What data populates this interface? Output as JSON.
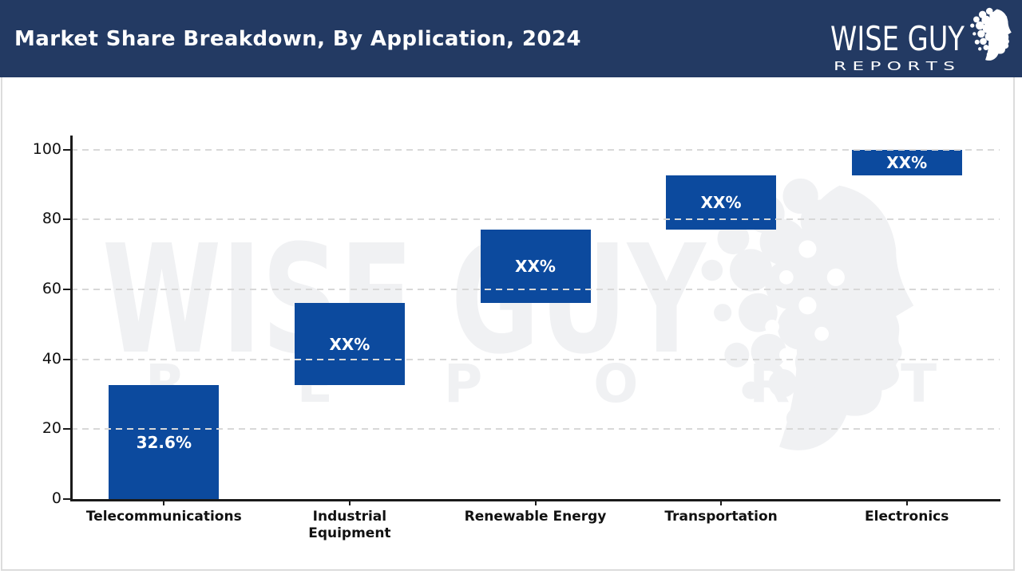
{
  "header": {
    "title": "Market Share Breakdown, By Application, 2024",
    "bg_color": "#233a63",
    "logo": {
      "line1": "WISE GUY",
      "line2": "R E P O R T S"
    }
  },
  "watermark": {
    "line1": "WISE GUY",
    "line2": "R E P O R T S"
  },
  "chart_data": {
    "type": "bar",
    "subtype": "waterfall",
    "title": "Market Share Breakdown, By Application, 2024",
    "categories": [
      "Telecommunications",
      "Industrial Equipment",
      "Renewable Energy",
      "Transportation",
      "Electronics"
    ],
    "category_label_lines": [
      [
        "Telecommunications"
      ],
      [
        "Industrial",
        "Equipment"
      ],
      [
        "Renewable Energy"
      ],
      [
        "Transportation"
      ],
      [
        "Electronics"
      ]
    ],
    "segments": [
      {
        "category": "Telecommunications",
        "start": 0,
        "end": 32.6,
        "label": "32.6%"
      },
      {
        "category": "Industrial Equipment",
        "start": 32.6,
        "end": 56,
        "label": "XX%"
      },
      {
        "category": "Renewable Energy",
        "start": 56,
        "end": 77,
        "label": "XX%"
      },
      {
        "category": "Transportation",
        "start": 77,
        "end": 92.5,
        "label": "XX%"
      },
      {
        "category": "Electronics",
        "start": 92.5,
        "end": 100,
        "label": "XX%"
      }
    ],
    "y_ticks": [
      0,
      20,
      40,
      60,
      80,
      100
    ],
    "ylim": [
      0,
      104
    ],
    "bar_color": "#0c4a9e",
    "grid": true,
    "grid_style": "dashed",
    "legend": false,
    "xlabel": "",
    "ylabel": ""
  }
}
